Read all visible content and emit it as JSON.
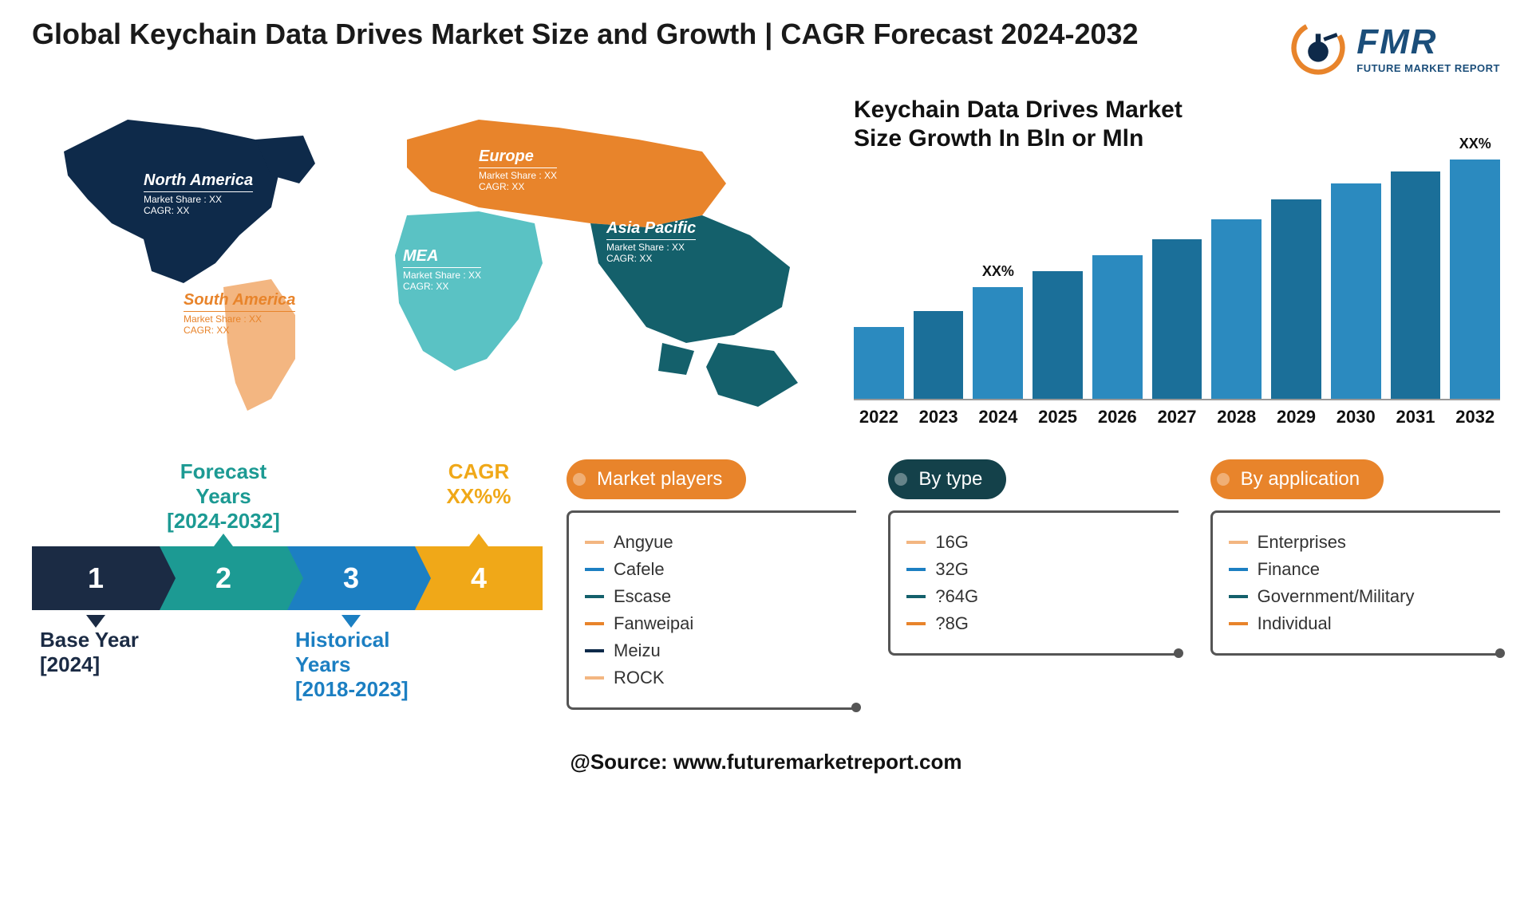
{
  "title": "Global Keychain Data Drives Market Size and Growth | CAGR Forecast 2024-2032",
  "logo": {
    "fmr": "FMR",
    "sub": "FUTURE MARKET REPORT"
  },
  "regions": {
    "north_america": {
      "name": "North America",
      "share": "Market Share : XX",
      "cagr": "CAGR: XX",
      "color": "#0e2a4a"
    },
    "south_america": {
      "name": "South America",
      "share": "Market Share : XX",
      "cagr": "CAGR: XX",
      "color": "#f3b681"
    },
    "europe": {
      "name": "Europe",
      "share": "Market Share : XX",
      "cagr": "CAGR: XX",
      "color": "#e8842b"
    },
    "mea": {
      "name": "MEA",
      "share": "Market Share : XX",
      "cagr": "CAGR: XX",
      "color": "#5ac2c4"
    },
    "asia_pacific": {
      "name": "Asia Pacific",
      "share": "Market Share : XX",
      "cagr": "CAGR: XX",
      "color": "#14606b"
    }
  },
  "chart": {
    "title": "Keychain Data Drives Market Size Growth In Bln or Mln",
    "years": [
      "2022",
      "2023",
      "2024",
      "2025",
      "2026",
      "2027",
      "2028",
      "2029",
      "2030",
      "2031",
      "2032"
    ],
    "values": [
      90,
      110,
      140,
      160,
      180,
      200,
      225,
      250,
      270,
      285,
      300
    ],
    "max": 300,
    "bar_colors": [
      "#2b8abf",
      "#1b6f99",
      "#2b8abf",
      "#1b6f99",
      "#2b8abf",
      "#1b6f99",
      "#2b8abf",
      "#1b6f99",
      "#2b8abf",
      "#1b6f99",
      "#2b8abf"
    ],
    "annotations": [
      {
        "index": 2,
        "text": "XX%"
      },
      {
        "index": 10,
        "text": "XX%"
      }
    ]
  },
  "timeline": {
    "segments": [
      {
        "num": "1",
        "color": "#1b2b44",
        "label_top": "",
        "sub_top": "",
        "label_bot": "Base Year",
        "sub_bot": "[2024]",
        "label_color": "#1b2b44"
      },
      {
        "num": "2",
        "color": "#1c9a93",
        "label_top": "Forecast Years",
        "sub_top": "[2024-2032]",
        "label_bot": "",
        "sub_bot": "",
        "label_color": "#1c9a93"
      },
      {
        "num": "3",
        "color": "#1c7fc2",
        "label_top": "",
        "sub_top": "",
        "label_bot": "Historical Years",
        "sub_bot": "[2018-2023]",
        "label_color": "#1c7fc2"
      },
      {
        "num": "4",
        "color": "#f0a818",
        "label_top": "CAGR",
        "sub_top": "XX%%",
        "label_bot": "",
        "sub_bot": "",
        "label_color": "#f0a818"
      }
    ]
  },
  "info_columns": [
    {
      "header": "Market players",
      "pill_color": "#e8842b",
      "items": [
        {
          "label": "Angyue",
          "dash_color": "#f3b681"
        },
        {
          "label": "Cafele",
          "dash_color": "#1c7fc2"
        },
        {
          "label": "Escase",
          "dash_color": "#14606b"
        },
        {
          "label": "Fanweipai",
          "dash_color": "#e8842b"
        },
        {
          "label": "Meizu",
          "dash_color": "#0e2a4a"
        },
        {
          "label": "ROCK",
          "dash_color": "#f3b681"
        }
      ]
    },
    {
      "header": "By type",
      "pill_color": "#14414a",
      "items": [
        {
          "label": "16G",
          "dash_color": "#f3b681"
        },
        {
          "label": "32G",
          "dash_color": "#1c7fc2"
        },
        {
          "label": "?64G",
          "dash_color": "#14606b"
        },
        {
          "label": "?8G",
          "dash_color": "#e8842b"
        }
      ]
    },
    {
      "header": "By application",
      "pill_color": "#e8842b",
      "items": [
        {
          "label": "Enterprises",
          "dash_color": "#f3b681"
        },
        {
          "label": "Finance",
          "dash_color": "#1c7fc2"
        },
        {
          "label": "Government/Military",
          "dash_color": "#14606b"
        },
        {
          "label": "Individual",
          "dash_color": "#e8842b"
        }
      ]
    }
  ],
  "source": "@Source: www.futuremarketreport.com"
}
